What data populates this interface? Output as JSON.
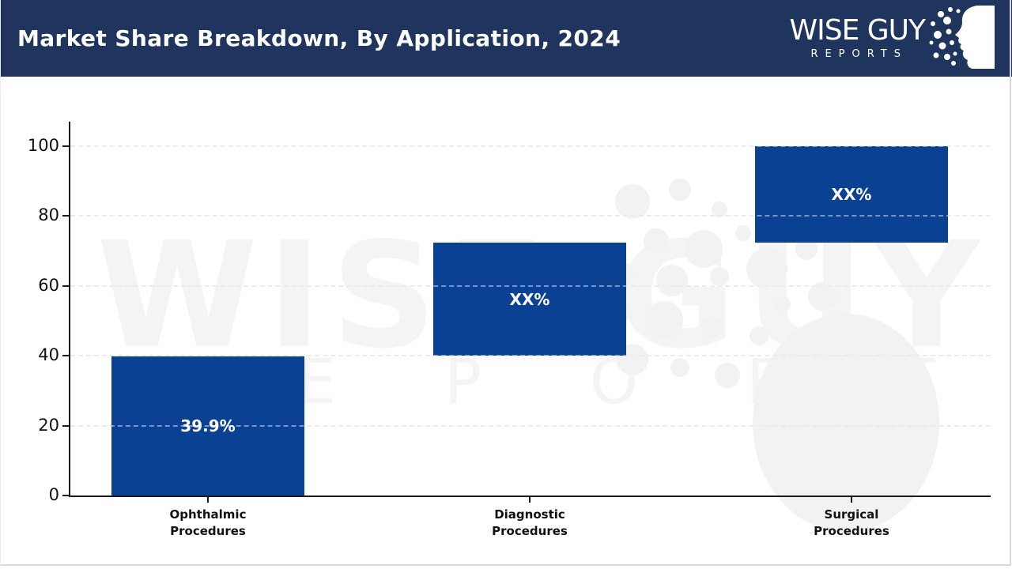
{
  "header": {
    "title": "Market Share Breakdown, By Application, 2024",
    "logo": {
      "line1": "WISE GUY",
      "line2": "REPORTS"
    }
  },
  "watermark": {
    "line1": "WISE GUY",
    "line2": "R E P O R T S"
  },
  "colors": {
    "header_bg": "#1f355e",
    "bar": "#0a4193",
    "bar_label": "#ffffff",
    "axis": "#1a1a1a",
    "grid": "#dcdcdc",
    "watermark": "#f4f4f4"
  },
  "chart_data": {
    "type": "bar",
    "subtype": "waterfall",
    "title": "Market Share Breakdown, By Application, 2024",
    "xlabel": "",
    "ylabel": "",
    "ylim": [
      0,
      107
    ],
    "yticks": [
      0,
      20,
      40,
      60,
      80,
      100
    ],
    "grid": "horizontal-dashed",
    "legend": "none",
    "categories": [
      "Ophthalmic\nProcedures",
      "Diagnostic\nProcedures",
      "Surgical\nProcedures"
    ],
    "segments": [
      {
        "category": "Ophthalmic Procedures",
        "start": 0,
        "end": 39.9,
        "label": "39.9%"
      },
      {
        "category": "Diagnostic Procedures",
        "start": 40,
        "end": 72.3,
        "label": "XX%"
      },
      {
        "category": "Surgical Procedures",
        "start": 72.3,
        "end": 100,
        "label": "XX%"
      }
    ]
  }
}
